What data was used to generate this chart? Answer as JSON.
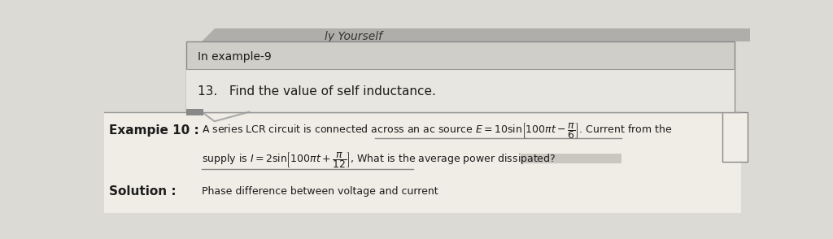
{
  "bg_color": "#dcdad4",
  "top_bar_color": "#b0aeaa",
  "box1_bg": "#d0cec8",
  "box1_inner_bg": "#e8e6e0",
  "box2_bg": "#e8e6e0",
  "title_text": "ly Yourself",
  "box1_text_line1": "In example-9",
  "box1_text_line2": "13.   Find the value of self inductance.",
  "example_label": "Exampie 10 :",
  "example_line1": "A series LCR circuit is connected across an ac source $E =10\\sin\\!\\left[100\\pi t-\\dfrac{\\pi}{6}\\right]$. Current from the",
  "supply_line": "supply is $I = 2\\sin\\!\\left[100\\pi t + \\dfrac{\\pi}{12}\\right]$, What is the average power dissipated?",
  "solution_label": "Solution :",
  "solution_text": "Phase difference between voltage and current",
  "text_color": "#1c1c1c",
  "separator_color": "#999999",
  "border_color": "#888888"
}
